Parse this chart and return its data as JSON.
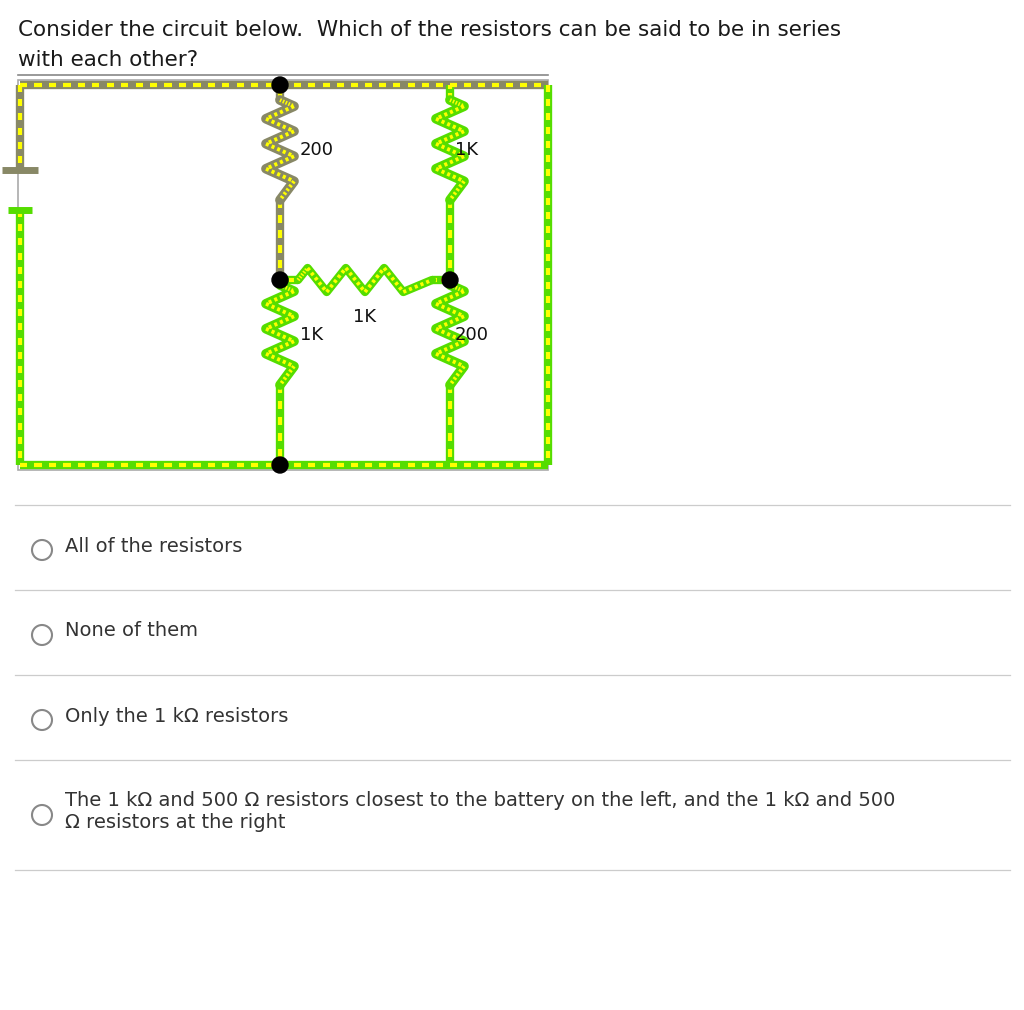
{
  "title_line1": "Consider the circuit below.  Which of the resistors can be said to be in series",
  "title_line2": "with each other?",
  "title_fontsize": 15.5,
  "options": [
    "All of the resistors",
    "None of them",
    "Only the 1 kΩ resistors",
    "The 1 kΩ and 500 Ω resistors closest to the battery on the left, and the 1 kΩ and 500\nΩ resistors at the right"
  ],
  "bg_color": "#ffffff",
  "wire_green": "#55dd00",
  "wire_gray": "#888866",
  "wire_yellow": "#ffff00",
  "dot_color": "#000000",
  "option_fontsize": 14,
  "label_fontsize": 13
}
